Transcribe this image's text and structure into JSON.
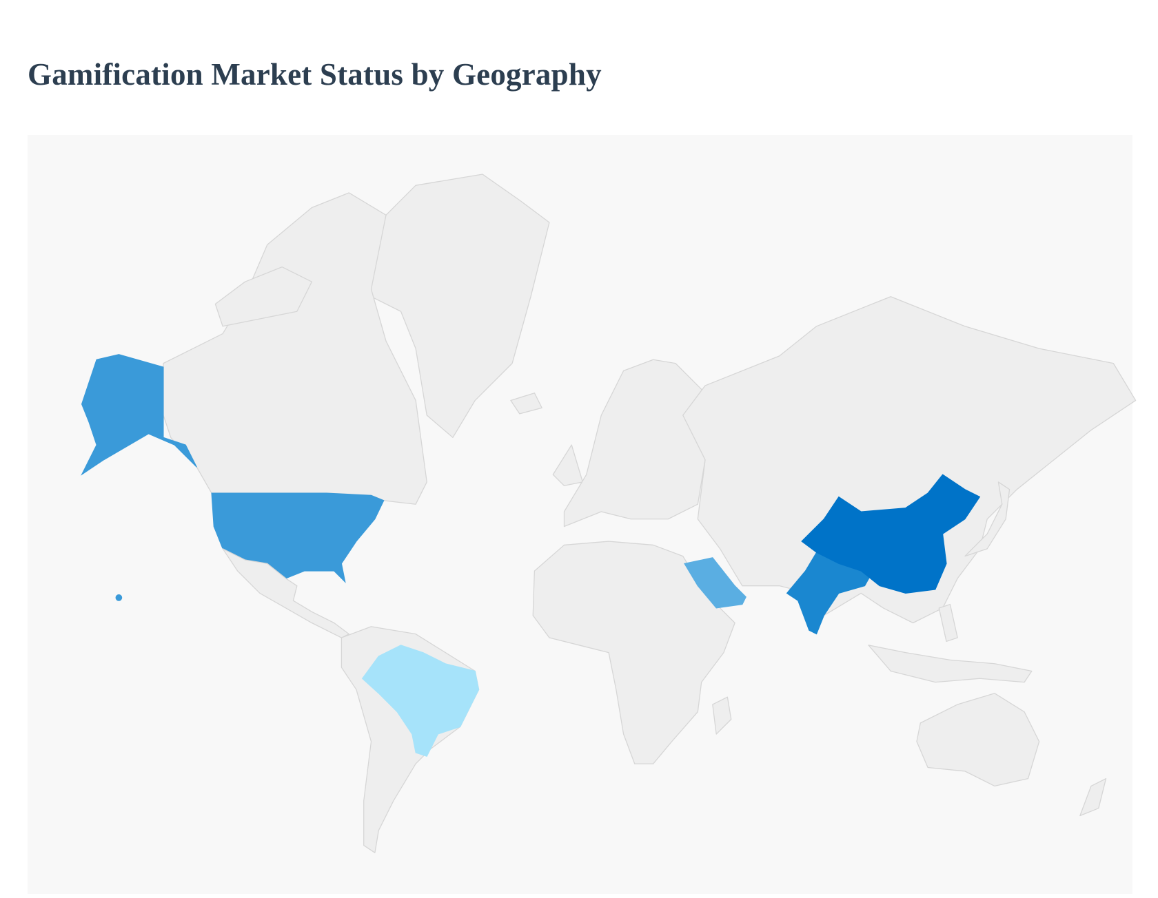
{
  "title": "Gamification Market Status by Geography",
  "map": {
    "background": "#f8f8f8",
    "default_fill": "#eeeeee",
    "border_color": "#d6d6d6",
    "fills": {
      "united-states": "#3a9ad9",
      "china": "#0073c8",
      "india": "#1a87d0",
      "saudi-arabia": "#5aaee2",
      "brazil": "#a6e3fa"
    }
  }
}
